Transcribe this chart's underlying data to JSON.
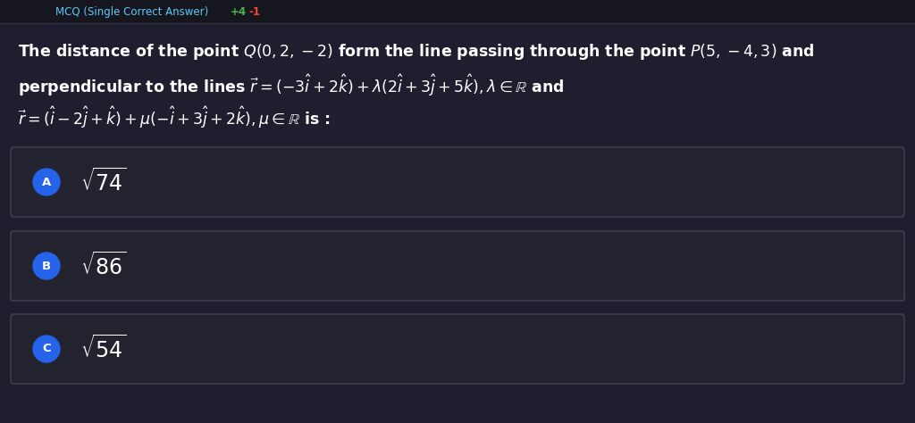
{
  "bg_color_main": "#1e1e2e",
  "bg_color_header": "#16161f",
  "header_text": "MCQ (Single Correct Answer)",
  "header_plus": "+4",
  "header_minus": "-1",
  "header_plus_color": "#4caf50",
  "header_minus_color": "#f44336",
  "header_text_color": "#5bc8f5",
  "question_color": "#ffffff",
  "question_line1": "The distance of the point $Q(0,2,-2)$ form the line passing through the point $P(5,-4,3)$ and",
  "question_line2": "perpendicular to the lines $\\vec{r}=(-3\\hat{i}+2\\hat{k})+\\lambda(2\\hat{i}+3\\hat{j}+5\\hat{k}),\\lambda\\in\\mathbb{R}$ and",
  "question_line3": "$\\vec{r}=(\\hat{i}-2\\hat{j}+\\hat{k})+\\mu(-\\hat{i}+3\\hat{j}+2\\hat{k}),\\mu\\in\\mathbb{R}$ is :",
  "options": [
    {
      "label": "A",
      "text": "$\\sqrt{74}$",
      "circle_color": "#2563eb"
    },
    {
      "label": "B",
      "text": "$\\sqrt{86}$",
      "circle_color": "#2563eb"
    },
    {
      "label": "C",
      "text": "$\\sqrt{54}$",
      "circle_color": "#2563eb"
    }
  ],
  "option_bg": "#23232f",
  "option_border": "#4a4a5a",
  "option_text_color": "#ffffff",
  "figsize": [
    10.24,
    4.74
  ],
  "dpi": 100
}
